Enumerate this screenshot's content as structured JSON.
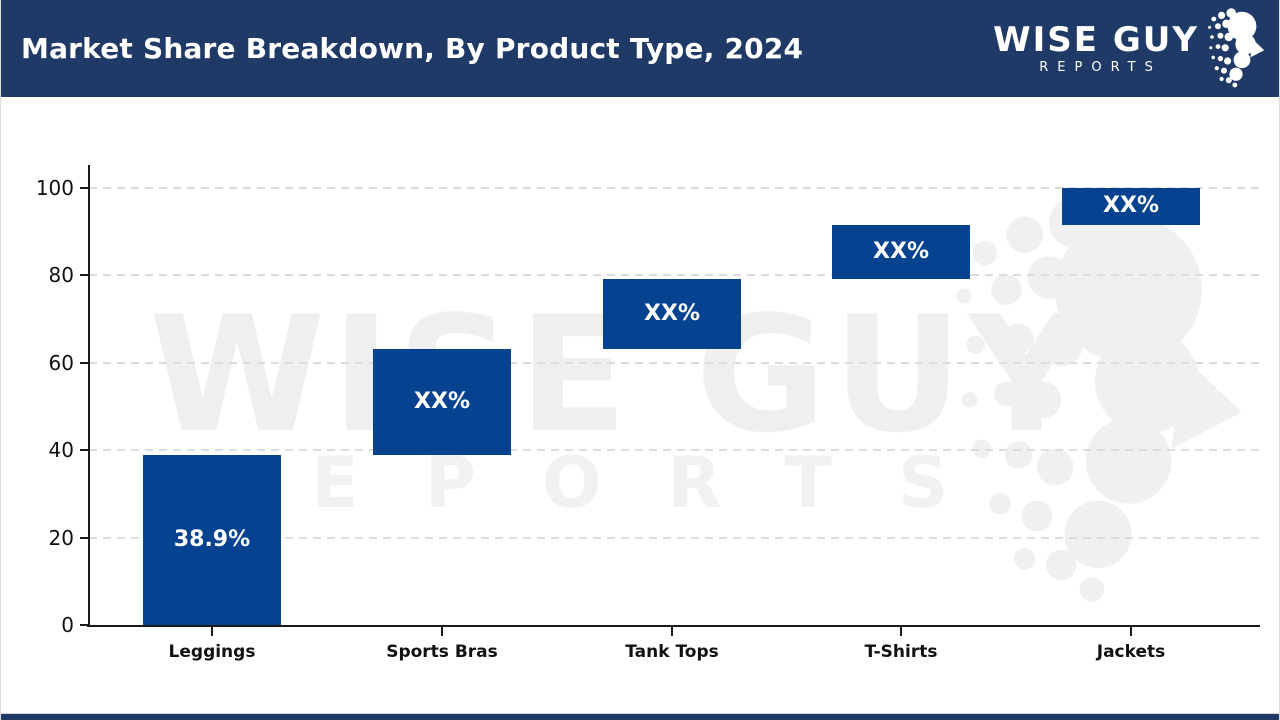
{
  "header": {
    "title": "Market Share Breakdown, By Product Type, 2024",
    "logo": {
      "line1": "WISE GUY",
      "line2": "REPORTS"
    }
  },
  "watermark": {
    "line1": "WISE GUY",
    "line2": "REPORTS"
  },
  "chart_data": {
    "type": "bar",
    "subtype": "waterfall",
    "title": "Market Share Breakdown, By Product Type, 2024",
    "categories": [
      "Leggings",
      "Sports Bras",
      "Tank Tops",
      "T-Shirts",
      "Jackets"
    ],
    "segments": [
      {
        "category": "Leggings",
        "start": 0,
        "end": 38.9,
        "label": "38.9%"
      },
      {
        "category": "Sports Bras",
        "start": 38.9,
        "end": 63,
        "label": "XX%"
      },
      {
        "category": "Tank Tops",
        "start": 63,
        "end": 79,
        "label": "XX%"
      },
      {
        "category": "T-Shirts",
        "start": 79,
        "end": 91.5,
        "label": "XX%"
      },
      {
        "category": "Jackets",
        "start": 91.5,
        "end": 100,
        "label": "XX%"
      }
    ],
    "xlabel": "",
    "ylabel": "",
    "yticks": [
      0,
      20,
      40,
      60,
      80,
      100
    ],
    "ylim": [
      0,
      105
    ],
    "grid": "horizontal-dashed",
    "legend": "none",
    "bar_color": "#05428f",
    "bar_label_color": "#ffffff"
  },
  "colors": {
    "header_bg": "#203a68",
    "footer_bg": "#203a68",
    "bar_blue": "#05428f",
    "grid_gray": "#dcdcdc",
    "axis_black": "#1a1a1a",
    "watermark_gray": "#efeff2"
  }
}
